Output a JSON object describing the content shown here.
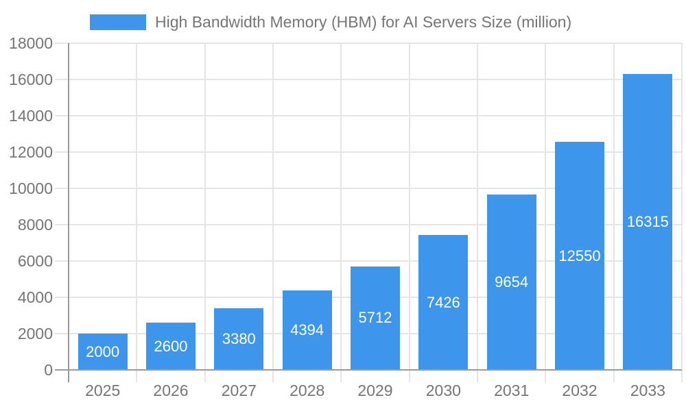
{
  "colors": {
    "bar": "#3D96EC",
    "axis": "#9a9a9a",
    "grid": "#e5e5e5",
    "label_gray": "#757575",
    "value_label": "#ffffff",
    "background": "#ffffff"
  },
  "chart_data": {
    "type": "bar",
    "legend": "High Bandwidth Memory (HBM) for AI Servers Size (million)",
    "legend_position": "top",
    "categories": [
      "2025",
      "2026",
      "2027",
      "2028",
      "2029",
      "2030",
      "2031",
      "2032",
      "2033"
    ],
    "values": [
      2000,
      2600,
      3380,
      4394,
      5712,
      7426,
      9654,
      12550,
      16315
    ],
    "title": "",
    "xlabel": "",
    "ylabel": "",
    "ylim": [
      0,
      18000
    ],
    "yticks": [
      0,
      2000,
      4000,
      6000,
      8000,
      10000,
      12000,
      14000,
      16000,
      18000
    ],
    "grid": true,
    "value_labels": "white, centered inside bars"
  }
}
